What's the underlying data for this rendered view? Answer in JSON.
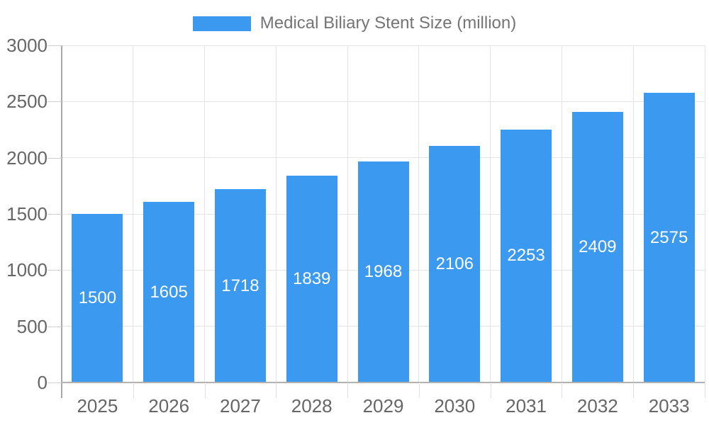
{
  "chart_data": {
    "type": "bar",
    "title": "Medical Biliary Stent Size (million)",
    "categories": [
      "2025",
      "2026",
      "2027",
      "2028",
      "2029",
      "2030",
      "2031",
      "2032",
      "2033"
    ],
    "values": [
      1500,
      1605,
      1718,
      1839,
      1968,
      2106,
      2253,
      2409,
      2575
    ],
    "value_labels": [
      "1500",
      "1605",
      "1718",
      "1839",
      "1968",
      "2106",
      "2253",
      "2409",
      "2575"
    ],
    "xlabel": "",
    "ylabel": "",
    "ylim": [
      0,
      3000
    ],
    "y_ticks": [
      0,
      500,
      1000,
      1500,
      2000,
      2500,
      3000
    ],
    "grid": true,
    "legend_position": "top-center",
    "colors": {
      "bar": "#3b99f0",
      "legend_text": "#757575",
      "axis_text": "#666666",
      "value_label_text": "#ffffff",
      "gridline": "#e3e3e3",
      "y_axis_line": "#a8a8a8",
      "x_axis_line": "#b1b1b1",
      "tick_mark": "#d5d5d5",
      "background": "#ffffff"
    }
  }
}
